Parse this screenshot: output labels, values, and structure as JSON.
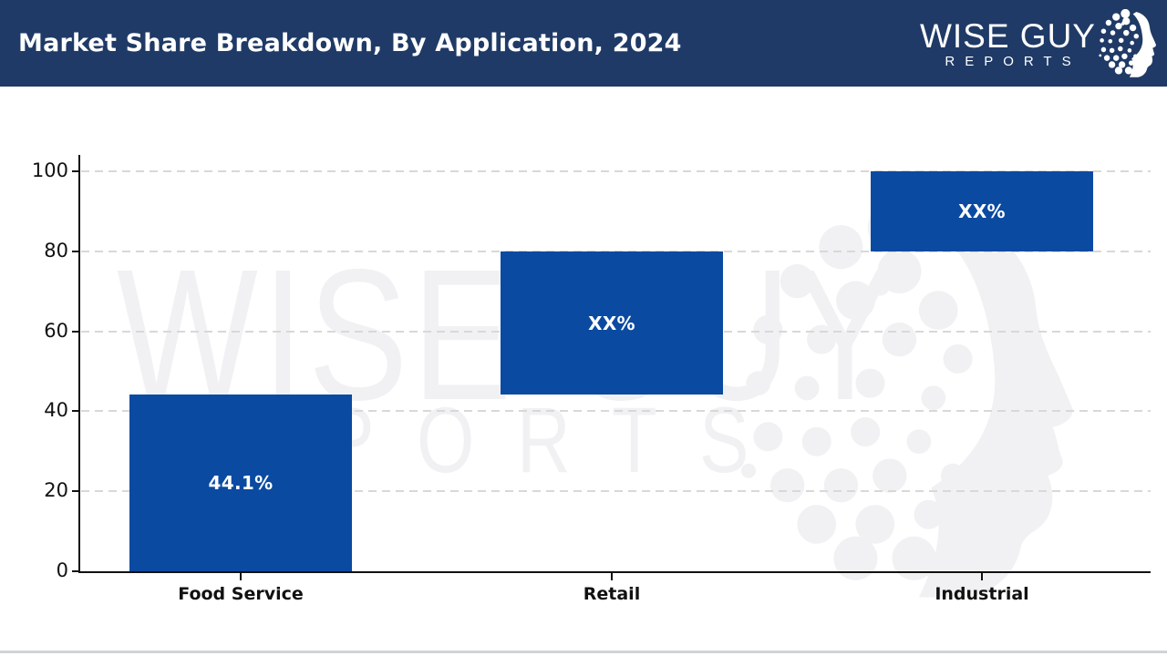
{
  "header": {
    "title": "Market Share Breakdown, By Application, 2024",
    "bg_color": "#1f3a66",
    "logo": {
      "line1": "WISE GUY",
      "line2": "REPORTS"
    }
  },
  "watermark": {
    "line1": "WISE GUY",
    "line2": "REPORTS"
  },
  "chart_data": {
    "type": "bar",
    "subtype": "waterfall",
    "title": "Market Share Breakdown, By Application, 2024",
    "categories": [
      "Food Service",
      "Retail",
      "Industrial"
    ],
    "segments": [
      {
        "category": "Food Service",
        "start": 0,
        "end": 44.1,
        "label": "44.1%"
      },
      {
        "category": "Retail",
        "start": 44.1,
        "end": 80,
        "label": "XX%"
      },
      {
        "category": "Industrial",
        "start": 80,
        "end": 100,
        "label": "XX%"
      }
    ],
    "y_ticks": [
      0,
      20,
      40,
      60,
      80,
      100
    ],
    "ylim": [
      0,
      100
    ],
    "xlabel": "",
    "ylabel": "",
    "grid": "horizontal-dashed",
    "legend": "none",
    "bar_color": "#0a4aa1",
    "bar_label_color": "#ffffff",
    "gridline_color": "#d8d8d8",
    "axis_color": "#111111"
  }
}
